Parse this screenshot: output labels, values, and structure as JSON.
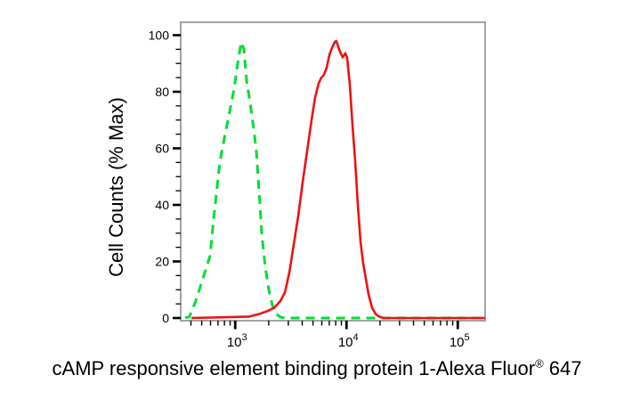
{
  "figure": {
    "y_axis_title": "Cell Counts (% Max)",
    "x_axis_title": {
      "pre": "cAMP responsive element binding protein 1-Alexa Fluor",
      "sup": "®",
      "post": " 647"
    }
  },
  "chart_data": {
    "type": "line",
    "title": "",
    "xlabel": "cAMP responsive element binding protein 1-Alexa Fluor® 647",
    "ylabel": "Cell Counts (% Max)",
    "x_scale": "log10",
    "x_domain_log10": [
      2.51,
      5.246
    ],
    "ylim": [
      0,
      100
    ],
    "grid": false,
    "legend": "none",
    "frame_color": "#a3a3a3",
    "tick_color": "#000000",
    "y_major_ticks": [
      {
        "value": 0,
        "label": "0"
      },
      {
        "value": 20,
        "label": "20"
      },
      {
        "value": 40,
        "label": "40"
      },
      {
        "value": 60,
        "label": "60"
      },
      {
        "value": 80,
        "label": "80"
      },
      {
        "value": 100,
        "label": "100"
      }
    ],
    "y_minor_tick_step": 5,
    "x_major_ticks": [
      {
        "value": 1000,
        "base": "10",
        "exp": "3"
      },
      {
        "value": 10000,
        "base": "10",
        "exp": "4"
      },
      {
        "value": 100000,
        "base": "10",
        "exp": "5"
      }
    ],
    "series": [
      {
        "name": "green-dashed-control",
        "color": "#00dd33",
        "style": "dashed",
        "dash": "10 7",
        "width": 3,
        "points": [
          [
            354,
            0
          ],
          [
            388,
            0.5
          ],
          [
            442,
            6
          ],
          [
            513,
            14
          ],
          [
            594,
            22
          ],
          [
            640,
            35
          ],
          [
            726,
            55
          ],
          [
            811,
            65
          ],
          [
            891,
            73
          ],
          [
            977,
            81
          ],
          [
            1052,
            90
          ],
          [
            1132,
            97.5
          ],
          [
            1196,
            95
          ],
          [
            1264,
            84
          ],
          [
            1361,
            76
          ],
          [
            1466,
            67
          ],
          [
            1549,
            59
          ],
          [
            1637,
            45
          ],
          [
            1729,
            30
          ],
          [
            1862,
            18
          ],
          [
            2004,
            10
          ],
          [
            2157,
            4.5
          ],
          [
            2323,
            1.5
          ],
          [
            2547,
            0.3
          ],
          [
            2793,
            0
          ],
          [
            176000,
            0
          ]
        ]
      },
      {
        "name": "red-solid-stained",
        "color": "#ee1111",
        "style": "solid",
        "dash": null,
        "width": 2.6,
        "points": [
          [
            404,
            0
          ],
          [
            1336,
            0.5
          ],
          [
            1667,
            1.5
          ],
          [
            1932,
            2.4
          ],
          [
            2239,
            3.6
          ],
          [
            2547,
            6
          ],
          [
            2793,
            9
          ],
          [
            3062,
            16
          ],
          [
            3357,
            26
          ],
          [
            3681,
            36
          ],
          [
            4036,
            48
          ],
          [
            4426,
            59
          ],
          [
            4853,
            70
          ],
          [
            5224,
            78
          ],
          [
            5623,
            83
          ],
          [
            5943,
            85
          ],
          [
            6281,
            86
          ],
          [
            6637,
            88.5
          ],
          [
            7015,
            93
          ],
          [
            7413,
            95.5
          ],
          [
            7834,
            97.5
          ],
          [
            8100,
            98
          ],
          [
            8500,
            95.5
          ],
          [
            8900,
            93.5
          ],
          [
            9250,
            92.2
          ],
          [
            9770,
            93.6
          ],
          [
            10140,
            92
          ],
          [
            10715,
            82.5
          ],
          [
            11324,
            68
          ],
          [
            11967,
            55.5
          ],
          [
            12647,
            40
          ],
          [
            13365,
            27
          ],
          [
            14125,
            19.3
          ],
          [
            14928,
            14
          ],
          [
            15776,
            8.3
          ],
          [
            16982,
            3.6
          ],
          [
            18281,
            1.4
          ],
          [
            20045,
            0.3
          ],
          [
            21978,
            0
          ],
          [
            176000,
            0
          ]
        ]
      }
    ]
  }
}
